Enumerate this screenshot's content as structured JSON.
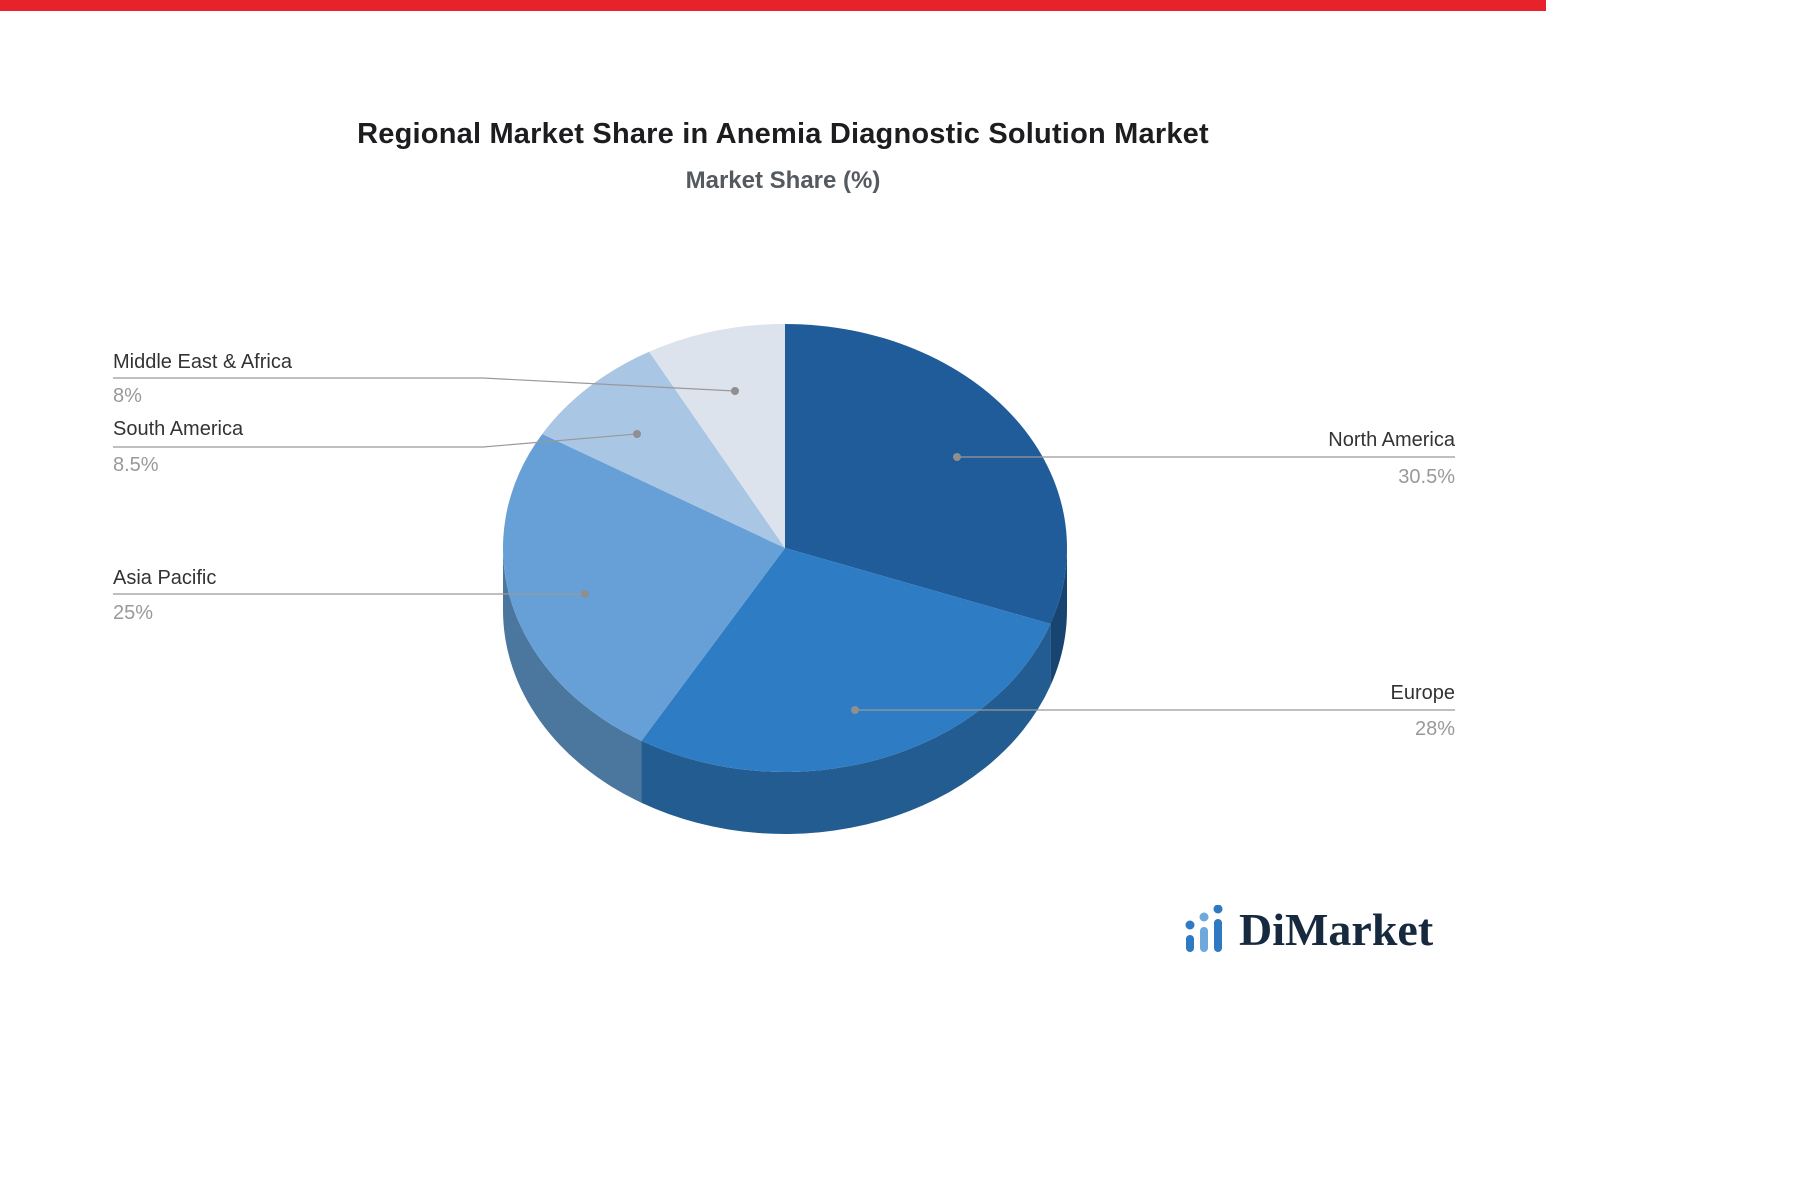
{
  "page": {
    "top_bar_color": "#E8222A"
  },
  "header": {
    "title": "Regional Market Share in Anemia Diagnostic Solution Market",
    "subtitle": "Market Share (%)"
  },
  "chart_data": {
    "type": "pie",
    "style": "3d",
    "start_angle": "top",
    "direction": "clockwise",
    "title": "Regional Market Share in Anemia Diagnostic Solution Market",
    "subtitle": "Market Share (%)",
    "unit": "%",
    "legend_position": "callout-labels",
    "slices": [
      {
        "label": "North America",
        "value": 30.5,
        "display": "30.5%",
        "color": "#1F5C99"
      },
      {
        "label": "Europe",
        "value": 28,
        "display": "28%",
        "color": "#2E7CC4"
      },
      {
        "label": "Asia Pacific",
        "value": 25,
        "display": "25%",
        "color": "#66A0D6"
      },
      {
        "label": "South America",
        "value": 8.5,
        "display": "8.5%",
        "color": "#A9C6E4"
      },
      {
        "label": "Middle East & Africa",
        "value": 8,
        "display": "8%",
        "color": "#DCE3ED"
      }
    ]
  },
  "branding": {
    "logo_text": "DiMarket",
    "logo_icon": "bar-chart-icon",
    "icon_color": "#2E79C4",
    "icon_color_light": "#6FA8DA",
    "text_color": "#16293F"
  }
}
